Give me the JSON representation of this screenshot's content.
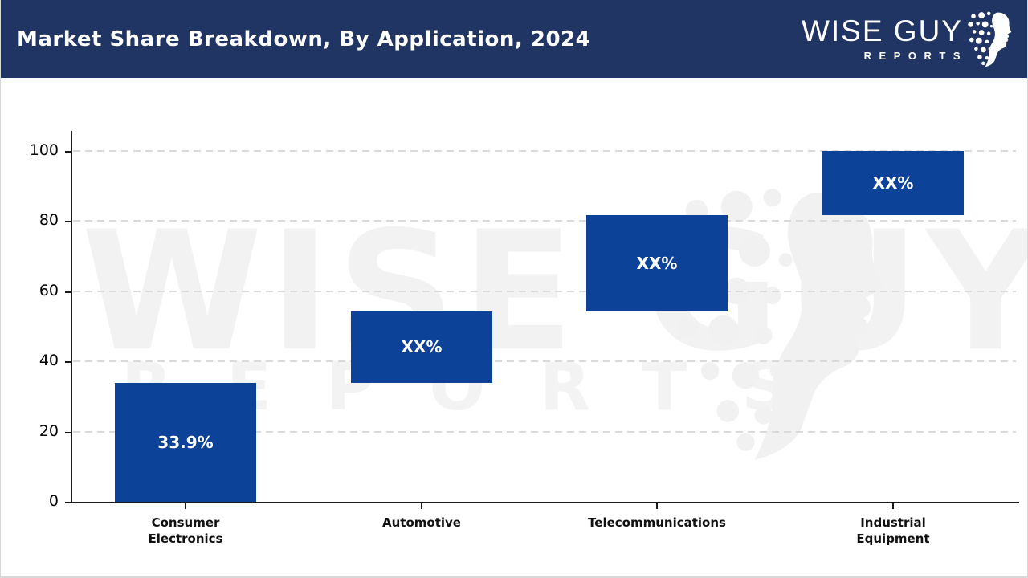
{
  "header": {
    "title": "Market Share Breakdown, By Application, 2024",
    "logo": {
      "brand": "WISE GUY",
      "sub": "REPORTS"
    }
  },
  "watermark": {
    "line1": "WISE GUY",
    "line2": "REPORTS"
  },
  "colors": {
    "header_bg": "#203564",
    "bar": "#0c4398",
    "bar_label_text": "#ffffff",
    "grid": "#dadada",
    "axis": "#1a1a1a",
    "watermark": "#f2f2f2",
    "category_text": "#111111"
  },
  "chart_data": {
    "type": "bar",
    "subtype": "floating-waterfall",
    "title": "Market Share Breakdown, By Application, 2024",
    "categories": [
      "Consumer Electronics",
      "Automotive",
      "Telecommunications",
      "Industrial Equipment"
    ],
    "category_lines": [
      [
        "Consumer",
        "Electronics"
      ],
      [
        "Automotive"
      ],
      [
        "Telecommunications"
      ],
      [
        "Industrial",
        "Equipment"
      ]
    ],
    "segments": [
      {
        "category": "Consumer Electronics",
        "start": 0,
        "end": 33.9,
        "label": "33.9%"
      },
      {
        "category": "Automotive",
        "start": 33.9,
        "end": 54.2,
        "label": "XX%"
      },
      {
        "category": "Telecommunications",
        "start": 54.2,
        "end": 81.6,
        "label": "XX%"
      },
      {
        "category": "Industrial Equipment",
        "start": 81.6,
        "end": 100,
        "label": "XX%"
      }
    ],
    "yticks": [
      0,
      20,
      40,
      60,
      80,
      100
    ],
    "ylim": [
      0,
      105.7
    ],
    "xlabel": "",
    "ylabel": "",
    "grid": "horizontal-dashed",
    "legend": "none"
  }
}
